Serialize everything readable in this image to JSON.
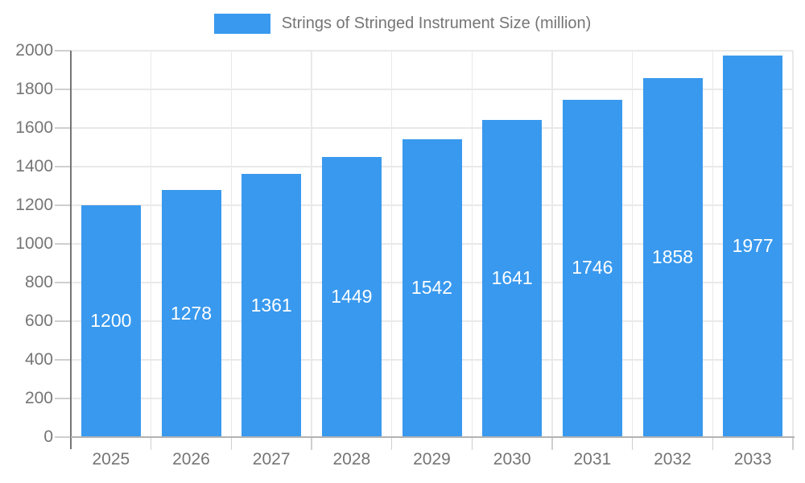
{
  "chart_data": {
    "type": "bar",
    "title": "Strings of Stringed Instrument Size (million)",
    "categories": [
      "2025",
      "2026",
      "2027",
      "2028",
      "2029",
      "2030",
      "2031",
      "2032",
      "2033"
    ],
    "values": [
      1200,
      1278,
      1361,
      1449,
      1542,
      1641,
      1746,
      1858,
      1977
    ],
    "xlabel": "",
    "ylabel": "",
    "ylim": [
      0,
      2000
    ],
    "yticks": [
      0,
      200,
      400,
      600,
      800,
      1000,
      1200,
      1400,
      1600,
      1800,
      2000
    ],
    "grid": true,
    "legend_position": "top",
    "value_labels_position": "center-of-bar",
    "colors": {
      "bar": "#3999EE",
      "value_label": "#FFFFFF",
      "axis_text": "#757575",
      "legend_text": "#757575",
      "gridline": "#E9E9E9",
      "y_axis_line": "#757575",
      "x_axis_line": "#B3B3B3",
      "tick": "#CFCFCF",
      "background": "#FFFFFF"
    }
  }
}
